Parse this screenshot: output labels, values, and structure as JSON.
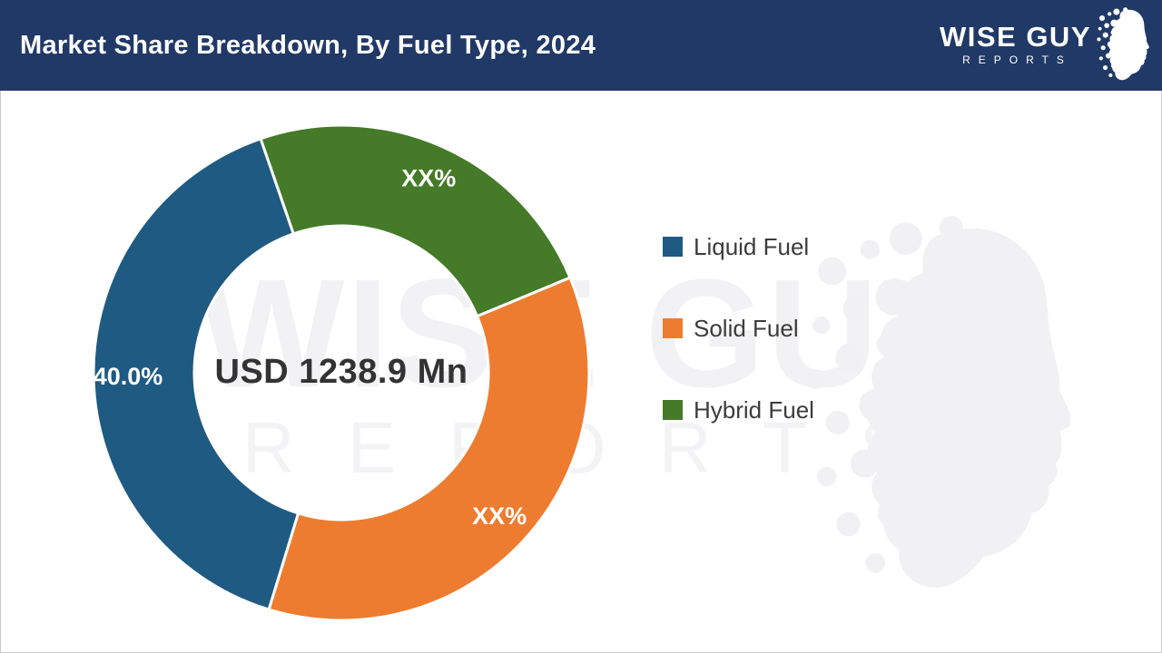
{
  "header": {
    "title": "Market Share Breakdown, By Fuel Type, 2024",
    "logo": {
      "line1": "WISE GUY",
      "line2": "REPORTS"
    }
  },
  "watermark": {
    "line1": "WISE GUY",
    "line2": "REPORTS"
  },
  "chart_data": {
    "type": "donut",
    "title": "Market Share Breakdown, By Fuel Type, 2024",
    "center_label": "USD 1238.9 Mn",
    "start_angle_deg": 197,
    "segments": [
      {
        "name": "Liquid Fuel",
        "display_label": "40.0%",
        "percent_est": 40.0,
        "color": "#1F5A82"
      },
      {
        "name": "Hybrid Fuel",
        "display_label": "XX%",
        "percent_est": 24.0,
        "color": "#447A28"
      },
      {
        "name": "Solid Fuel",
        "display_label": "XX%",
        "percent_est": 36.0,
        "color": "#EE7C30"
      }
    ],
    "legend": [
      {
        "label": "Liquid Fuel",
        "color": "#1F5A82"
      },
      {
        "label": "Solid Fuel",
        "color": "#EE7C30"
      },
      {
        "label": "Hybrid Fuel",
        "color": "#447A28"
      }
    ],
    "legend_position": "right",
    "colors": {
      "header_bg": "#213967",
      "center_text": "#333333",
      "legend_text": "#3C3C3C",
      "watermark": "#F2F2F4",
      "card_border": "#CACACA"
    }
  }
}
